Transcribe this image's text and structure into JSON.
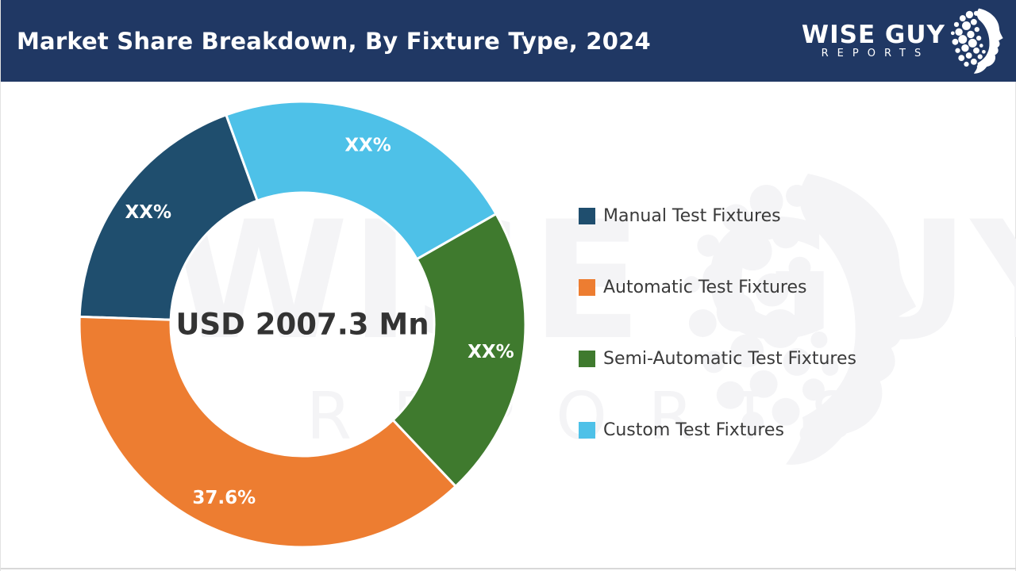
{
  "header": {
    "title": "Market Share Breakdown, By Fixture Type, 2024",
    "logo": {
      "line1": "WISE GUY",
      "line2": "REPORTS"
    }
  },
  "watermark": {
    "line1": "WISE GUY",
    "line2": "REPORTS"
  },
  "chart_data": {
    "type": "pie",
    "variant": "donut",
    "title": "Market Share Breakdown, By Fixture Type, 2024",
    "center_label": "USD 2007.3 Mn",
    "legend_position": "right",
    "start_angle_deg": 110,
    "direction": "counterclockwise",
    "inner_radius_ratio": 0.59,
    "series": [
      {
        "name": "Manual Test Fixtures",
        "value": 18.9,
        "display_label": "XX%",
        "color": "#1F4E6E"
      },
      {
        "name": "Automatic Test Fixtures",
        "value": 37.6,
        "display_label": "37.6%",
        "color": "#ED7D31"
      },
      {
        "name": "Semi-Automatic Test Fixtures",
        "value": 21.2,
        "display_label": "XX%",
        "color": "#3F7A2E"
      },
      {
        "name": "Custom Test Fixtures",
        "value": 22.3,
        "display_label": "XX%",
        "color": "#4EC1E8"
      }
    ]
  },
  "colors": {
    "header_bg": "#203864",
    "title_text": "#FFFFFF",
    "center_text": "#333333",
    "legend_text": "#3A3A3A",
    "slice_label_text": "#FFFFFF",
    "watermark": "#F4F4F6"
  }
}
